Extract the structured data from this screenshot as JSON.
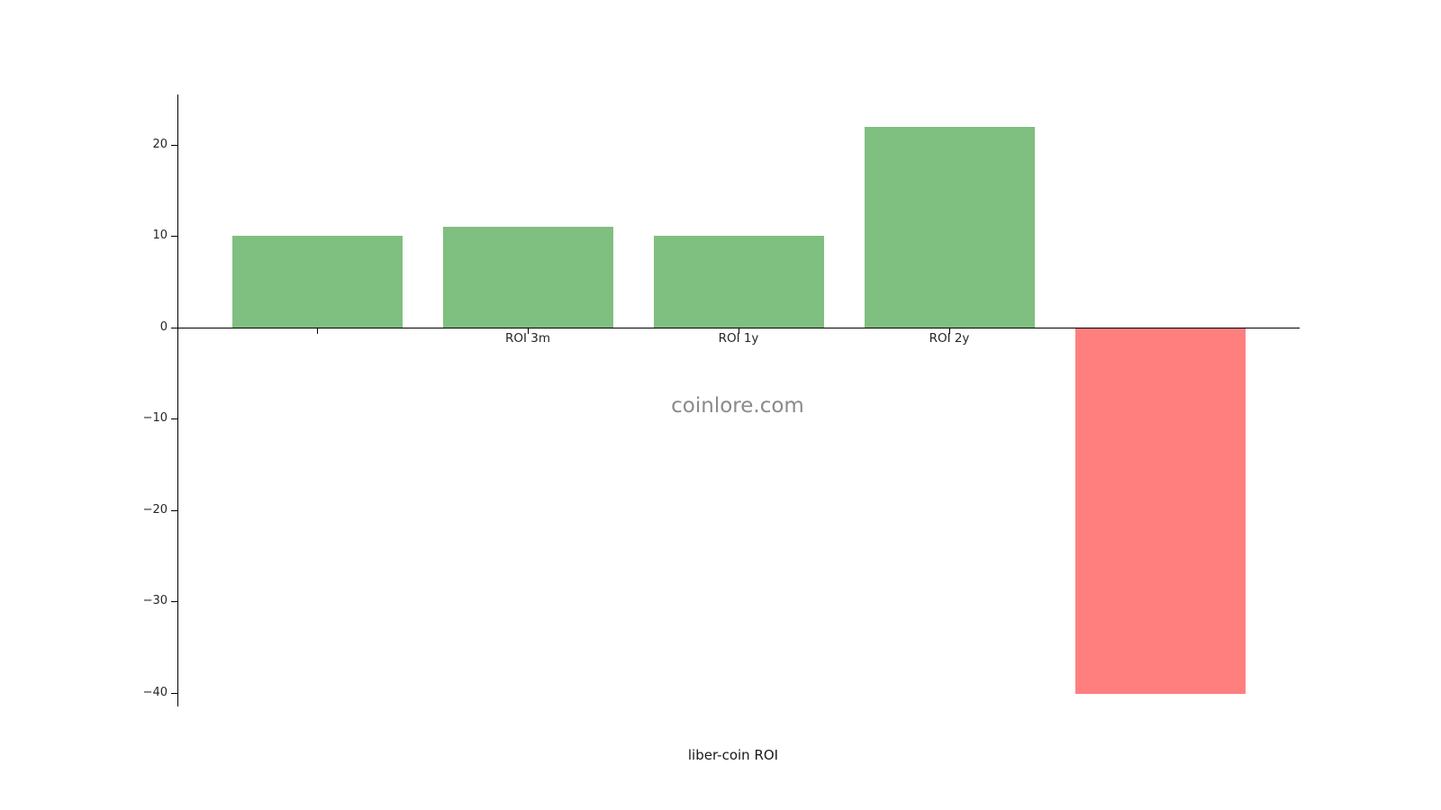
{
  "page": {
    "background": "#ffffff"
  },
  "chart_data": {
    "type": "bar",
    "title": "liber-coin ROI",
    "watermark": "coinlore.com",
    "categories": [
      "",
      "ROI 3m",
      "ROI 1y",
      "ROI 2y",
      ""
    ],
    "values": [
      10,
      11,
      10,
      22,
      -40
    ],
    "x_tick_visible": [
      true,
      true,
      true,
      true,
      false
    ],
    "yticks": [
      20,
      10,
      0,
      -10,
      -20,
      -30,
      -40
    ],
    "ytick_labels": [
      "20",
      "10",
      "0",
      "−10",
      "−20",
      "−30",
      "−40"
    ],
    "ylim": [
      -41.5,
      25.5
    ],
    "xlabel": "",
    "ylabel": "",
    "grid": false,
    "legend": null,
    "colors": {
      "positive": "#7fbf7f",
      "negative": "#ff7f7f",
      "axis": "#000000",
      "tick_label": "#262626",
      "watermark": "#8a8a8a",
      "title_text": "#1a1a1a"
    }
  }
}
